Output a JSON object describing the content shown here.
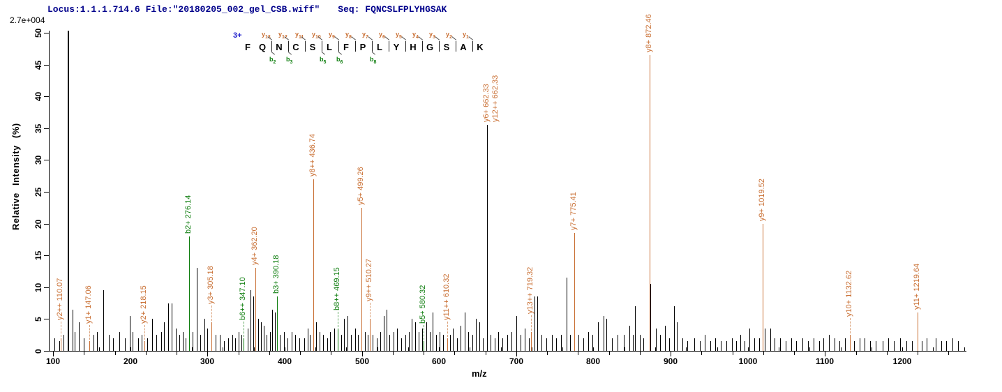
{
  "header": {
    "locus": "Locus:1.1.1.714.6",
    "file": "File:\"20180205_002_gel_CSB.wiff\"",
    "seq_label": "Seq:",
    "sequence": "FQNCSLFPLYHGSAK"
  },
  "colors": {
    "y_series": "#C96F33",
    "b_series": "#0F7E0F",
    "default_peak": "#000000",
    "header_text": "#00008B",
    "charge_text": "#2222CC"
  },
  "chart_data": {
    "type": "bar",
    "subtype": "ms2-fragment-stick-spectrum",
    "intensity_scale": "2.7e+004",
    "xlabel": "m/z",
    "ylabel": "Relative Intensity (%)",
    "xlim": [
      95,
      1285
    ],
    "ylim": [
      0,
      50
    ],
    "x_major_ticks": [
      100,
      200,
      300,
      400,
      500,
      600,
      700,
      800,
      900,
      1000,
      1100,
      1200
    ],
    "y_major_ticks": [
      0,
      5,
      10,
      15,
      20,
      25,
      30,
      35,
      40,
      45,
      50
    ],
    "grid": false,
    "precursor_charge": "3+",
    "peptide_sequence": [
      "F",
      "Q",
      "N",
      "C",
      "S",
      "L",
      "F",
      "P",
      "L",
      "Y",
      "H",
      "G",
      "S",
      "A",
      "K"
    ],
    "fragment_gaps": [
      {
        "gap": 2,
        "y": "y13",
        "b": "b2"
      },
      {
        "gap": 3,
        "y": "y12",
        "b": "b3"
      },
      {
        "gap": 4,
        "y": "y11"
      },
      {
        "gap": 5,
        "y": "y10",
        "b": "b5"
      },
      {
        "gap": 6,
        "y": "y9",
        "b": "b6"
      },
      {
        "gap": 7,
        "y": "y8"
      },
      {
        "gap": 8,
        "y": "y7",
        "b": "b8"
      },
      {
        "gap": 9,
        "y": "y6"
      },
      {
        "gap": 10,
        "y": "y5"
      },
      {
        "gap": 11,
        "y": "y4"
      },
      {
        "gap": 12,
        "y": "y3"
      },
      {
        "gap": 13,
        "y": "y2"
      },
      {
        "gap": 14,
        "y": "y1"
      }
    ],
    "annotated_peaks": [
      {
        "mz": 110.07,
        "intensity": 2,
        "series": "y",
        "labels": [
          "y2++ 110.07"
        ]
      },
      {
        "mz": 147.06,
        "intensity": 1.5,
        "series": "y",
        "labels": [
          "y1+ 147.06"
        ]
      },
      {
        "mz": 218.15,
        "intensity": 1.5,
        "series": "y",
        "labels": [
          "y2+ 218.15"
        ]
      },
      {
        "mz": 276.14,
        "intensity": 18,
        "series": "b",
        "labels": [
          "b2+ 276.14"
        ]
      },
      {
        "mz": 305.18,
        "intensity": 4.5,
        "series": "y",
        "labels": [
          "y3+ 305.18"
        ]
      },
      {
        "mz": 347.1,
        "intensity": 2,
        "series": "b",
        "labels": [
          "b6++ 347.10"
        ]
      },
      {
        "mz": 362.2,
        "intensity": 13,
        "series": "y",
        "labels": [
          "y4+ 362.20"
        ]
      },
      {
        "mz": 390.18,
        "intensity": 8.5,
        "series": "b",
        "labels": [
          "b3+ 390.18"
        ]
      },
      {
        "mz": 436.74,
        "intensity": 27,
        "series": "y",
        "labels": [
          "y8++ 436.74"
        ]
      },
      {
        "mz": 469.15,
        "intensity": 3.5,
        "series": "b",
        "labels": [
          "b8++ 469.15"
        ]
      },
      {
        "mz": 499.26,
        "intensity": 22.5,
        "series": "y",
        "labels": [
          "y5+ 499.26"
        ]
      },
      {
        "mz": 510.27,
        "intensity": 5,
        "series": "y",
        "labels": [
          "y9++ 510.27"
        ]
      },
      {
        "mz": 580.32,
        "intensity": 1.5,
        "series": "b",
        "labels": [
          "b5+ 580.32"
        ]
      },
      {
        "mz": 610.32,
        "intensity": 2,
        "series": "y",
        "labels": [
          "y11++ 610.32"
        ]
      },
      {
        "mz": 662.33,
        "intensity": 35.5,
        "series": "y",
        "line": "black",
        "labels": [
          "y6+ 662.33",
          "y12++ 662.33"
        ]
      },
      {
        "mz": 719.32,
        "intensity": 3,
        "series": "y",
        "labels": [
          "y13++ 719.32"
        ]
      },
      {
        "mz": 775.41,
        "intensity": 18.5,
        "series": "y",
        "labels": [
          "y7+ 775.41"
        ]
      },
      {
        "mz": 872.46,
        "intensity": 46.5,
        "series": "y",
        "labels": [
          "y8+ 872.46"
        ]
      },
      {
        "mz": 1019.52,
        "intensity": 20,
        "series": "y",
        "labels": [
          "y9+ 1019.52"
        ]
      },
      {
        "mz": 1132.62,
        "intensity": 2.5,
        "series": "y",
        "labels": [
          "y10+ 1132.62"
        ]
      },
      {
        "mz": 1219.64,
        "intensity": 6,
        "series": "y",
        "labels": [
          "y11+ 1219.64"
        ]
      }
    ],
    "noise_peaks": [
      [
        102,
        2
      ],
      [
        108,
        1.5
      ],
      [
        114,
        2.5
      ],
      [
        119,
        50.5
      ],
      [
        125,
        6.5
      ],
      [
        128,
        3
      ],
      [
        133,
        4.5
      ],
      [
        140,
        2
      ],
      [
        152,
        2.5
      ],
      [
        157,
        3
      ],
      [
        165,
        9.5
      ],
      [
        172,
        2.5
      ],
      [
        178,
        2
      ],
      [
        186,
        3
      ],
      [
        193,
        2
      ],
      [
        199,
        5.5
      ],
      [
        203,
        3
      ],
      [
        210,
        2
      ],
      [
        215,
        2.5
      ],
      [
        222,
        2
      ],
      [
        228,
        5
      ],
      [
        234,
        2.5
      ],
      [
        240,
        3
      ],
      [
        244,
        4.5
      ],
      [
        249,
        7.5
      ],
      [
        254,
        7.5
      ],
      [
        259,
        3.5
      ],
      [
        264,
        2.5
      ],
      [
        268,
        3
      ],
      [
        272,
        2
      ],
      [
        281,
        3
      ],
      [
        286,
        13
      ],
      [
        291,
        2.5
      ],
      [
        296,
        5
      ],
      [
        300,
        3.5
      ],
      [
        311,
        2.5
      ],
      [
        316,
        2.5
      ],
      [
        321,
        1.5
      ],
      [
        327,
        2
      ],
      [
        332,
        2.5
      ],
      [
        336,
        2
      ],
      [
        340,
        3
      ],
      [
        344,
        2.5
      ],
      [
        352,
        3.5
      ],
      [
        356,
        9.5
      ],
      [
        359,
        8.5
      ],
      [
        366,
        5
      ],
      [
        369,
        4.5
      ],
      [
        373,
        4
      ],
      [
        377,
        2.5
      ],
      [
        381,
        3
      ],
      [
        384,
        6.5
      ],
      [
        387,
        6
      ],
      [
        394,
        2.5
      ],
      [
        399,
        3
      ],
      [
        404,
        2
      ],
      [
        409,
        3
      ],
      [
        414,
        2.5
      ],
      [
        419,
        2
      ],
      [
        425,
        2
      ],
      [
        430,
        3.5
      ],
      [
        433,
        2.5
      ],
      [
        441,
        4.5
      ],
      [
        445,
        3
      ],
      [
        450,
        2.5
      ],
      [
        455,
        2
      ],
      [
        459,
        3
      ],
      [
        464,
        3.5
      ],
      [
        473,
        2.5
      ],
      [
        477,
        5
      ],
      [
        481,
        5.5
      ],
      [
        486,
        2.5
      ],
      [
        491,
        3.5
      ],
      [
        495,
        2.5
      ],
      [
        504,
        3
      ],
      [
        508,
        2.5
      ],
      [
        514,
        2.5
      ],
      [
        519,
        2
      ],
      [
        524,
        3
      ],
      [
        528,
        5.5
      ],
      [
        532,
        6.5
      ],
      [
        536,
        2.5
      ],
      [
        541,
        3
      ],
      [
        546,
        3.5
      ],
      [
        551,
        2
      ],
      [
        556,
        2.5
      ],
      [
        561,
        3
      ],
      [
        565,
        5
      ],
      [
        569,
        4.5
      ],
      [
        574,
        3
      ],
      [
        578,
        3.5
      ],
      [
        584,
        4.5
      ],
      [
        588,
        3
      ],
      [
        592,
        6
      ],
      [
        596,
        2.5
      ],
      [
        601,
        3
      ],
      [
        605,
        2.5
      ],
      [
        614,
        2.5
      ],
      [
        618,
        3.5
      ],
      [
        623,
        2
      ],
      [
        628,
        4
      ],
      [
        633,
        6
      ],
      [
        638,
        3
      ],
      [
        643,
        2.5
      ],
      [
        648,
        5
      ],
      [
        652,
        4.5
      ],
      [
        657,
        2
      ],
      [
        667,
        2.5
      ],
      [
        672,
        2
      ],
      [
        677,
        3
      ],
      [
        682,
        2
      ],
      [
        688,
        2.5
      ],
      [
        694,
        3
      ],
      [
        700,
        5.5
      ],
      [
        706,
        2.5
      ],
      [
        711,
        3.5
      ],
      [
        716,
        2
      ],
      [
        724,
        8.5
      ],
      [
        727,
        8.5
      ],
      [
        733,
        2.5
      ],
      [
        739,
        2
      ],
      [
        746,
        2.5
      ],
      [
        752,
        2
      ],
      [
        758,
        2.5
      ],
      [
        765,
        11.5
      ],
      [
        770,
        2.5
      ],
      [
        781,
        2.5
      ],
      [
        787,
        2
      ],
      [
        793,
        3
      ],
      [
        799,
        2.5
      ],
      [
        806,
        4.5
      ],
      [
        813,
        5.5
      ],
      [
        817,
        5
      ],
      [
        824,
        2
      ],
      [
        831,
        2.5
      ],
      [
        839,
        2.5
      ],
      [
        847,
        4
      ],
      [
        851,
        2.5
      ],
      [
        854,
        7
      ],
      [
        860,
        2.5
      ],
      [
        865,
        2
      ],
      [
        874,
        10.5
      ],
      [
        881,
        3.5
      ],
      [
        886,
        2.5
      ],
      [
        893,
        4
      ],
      [
        898,
        2
      ],
      [
        904,
        7
      ],
      [
        908,
        4.5
      ],
      [
        915,
        2
      ],
      [
        922,
        1.5
      ],
      [
        931,
        2
      ],
      [
        938,
        1.5
      ],
      [
        944,
        2.5
      ],
      [
        951,
        1.5
      ],
      [
        958,
        2
      ],
      [
        965,
        1.5
      ],
      [
        972,
        1.5
      ],
      [
        979,
        2
      ],
      [
        985,
        1.5
      ],
      [
        990,
        2.5
      ],
      [
        996,
        1.5
      ],
      [
        1002,
        3.5
      ],
      [
        1008,
        2
      ],
      [
        1015,
        2
      ],
      [
        1022,
        3.5
      ],
      [
        1029,
        3.5
      ],
      [
        1035,
        2
      ],
      [
        1042,
        2
      ],
      [
        1049,
        1.5
      ],
      [
        1056,
        2
      ],
      [
        1063,
        1.5
      ],
      [
        1071,
        2
      ],
      [
        1078,
        1.5
      ],
      [
        1085,
        2
      ],
      [
        1092,
        1.5
      ],
      [
        1098,
        2
      ],
      [
        1105,
        2.5
      ],
      [
        1112,
        2
      ],
      [
        1119,
        1.5
      ],
      [
        1126,
        2
      ],
      [
        1138,
        1.5
      ],
      [
        1145,
        2
      ],
      [
        1151,
        2
      ],
      [
        1158,
        1.5
      ],
      [
        1166,
        1.5
      ],
      [
        1175,
        1.5
      ],
      [
        1182,
        2
      ],
      [
        1189,
        1.5
      ],
      [
        1197,
        2
      ],
      [
        1205,
        1.5
      ],
      [
        1213,
        1.5
      ],
      [
        1225,
        1.5
      ],
      [
        1232,
        2
      ],
      [
        1243,
        2
      ],
      [
        1251,
        1.5
      ],
      [
        1257,
        1.5
      ],
      [
        1265,
        2
      ],
      [
        1272,
        1.5
      ]
    ]
  }
}
